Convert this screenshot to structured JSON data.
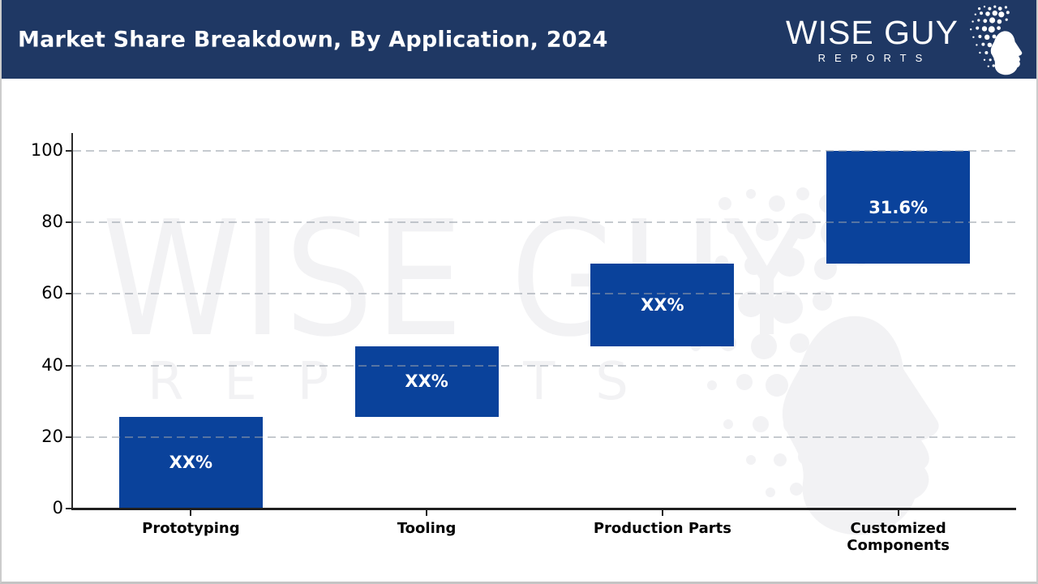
{
  "header": {
    "title": "Market Share Breakdown, By Application, 2024",
    "logo_line1": "WISE GUY",
    "logo_line2": "REPORTS"
  },
  "watermark": {
    "line1": "WISE GUY",
    "line2": "REPORTS"
  },
  "colors": {
    "header_bg": "#1f3864",
    "bar": "#0a429b",
    "axis": "#1f1f1f",
    "gridline": "#e3e3e3",
    "bar_label": "#ffffff",
    "watermark": "#f2f2f4"
  },
  "chart_data": {
    "type": "bar",
    "variant": "floating-segment (stacked market-share breakdown)",
    "title": "Market Share Breakdown, By Application, 2024",
    "categories": [
      "Prototyping",
      "Tooling",
      "Production Parts",
      "Customized Components"
    ],
    "segments": [
      {
        "category": "Prototyping",
        "from": 0,
        "to": 25.7,
        "label": "XX%"
      },
      {
        "category": "Tooling",
        "from": 25.7,
        "to": 45.4,
        "label": "XX%"
      },
      {
        "category": "Production Parts",
        "from": 45.4,
        "to": 68.4,
        "label": "XX%"
      },
      {
        "category": "Customized Components",
        "from": 68.4,
        "to": 100,
        "label": "31.6%"
      }
    ],
    "yticks": [
      0,
      20,
      40,
      60,
      80,
      100
    ],
    "ylim": [
      0,
      105
    ],
    "xlabel": "",
    "ylabel": "",
    "grid": "horizontal dashed, drawn over bars",
    "legend": "none"
  }
}
